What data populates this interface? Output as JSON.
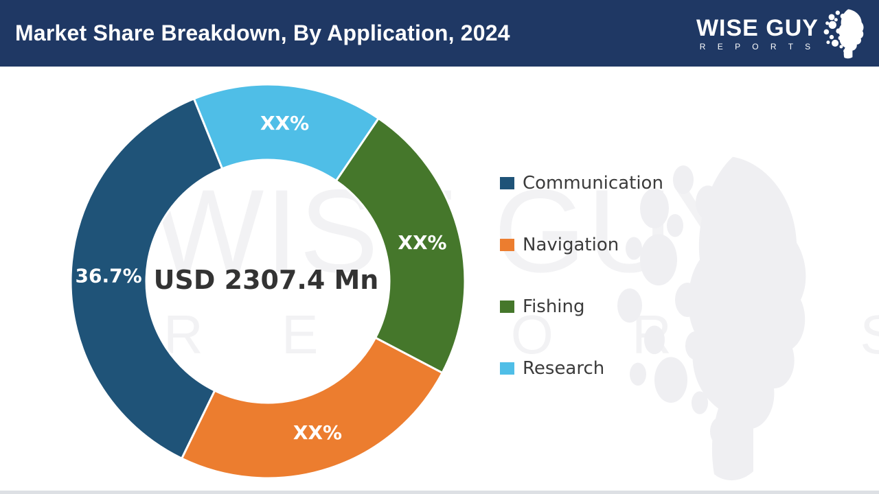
{
  "header": {
    "title": "Market Share Breakdown, By Application, 2024",
    "logo": {
      "line1": "WISE GUY",
      "line2": "R E P O R T S"
    }
  },
  "watermark": {
    "line1": "WISE GUY",
    "line2": "R E P O R T S"
  },
  "chart_data": {
    "type": "pie",
    "subtype": "donut",
    "title": "Market Share Breakdown, By Application, 2024",
    "center_label": "USD 2307.4 Mn",
    "start_angle_deg": 112,
    "direction": "counterclockwise",
    "legend_position": "right",
    "segments": [
      {
        "name": "Communication",
        "label": "36.7%",
        "value_pct": 36.7,
        "color": "#1F5378"
      },
      {
        "name": "Navigation",
        "label": "XX%",
        "value_pct": 24.5,
        "color": "#EC7D2F"
      },
      {
        "name": "Fishing",
        "label": "XX%",
        "value_pct": 23.2,
        "color": "#45772B"
      },
      {
        "name": "Research",
        "label": "XX%",
        "value_pct": 15.6,
        "color": "#4FBEE7"
      }
    ]
  },
  "colors": {
    "header_bg": "#1F3864",
    "page_bg": "#FFFFFF",
    "center_text": "#333333",
    "legend_text": "#3B3B3B",
    "watermark": "#F2F2F4",
    "bottom_strip": "#DDE0E4"
  }
}
